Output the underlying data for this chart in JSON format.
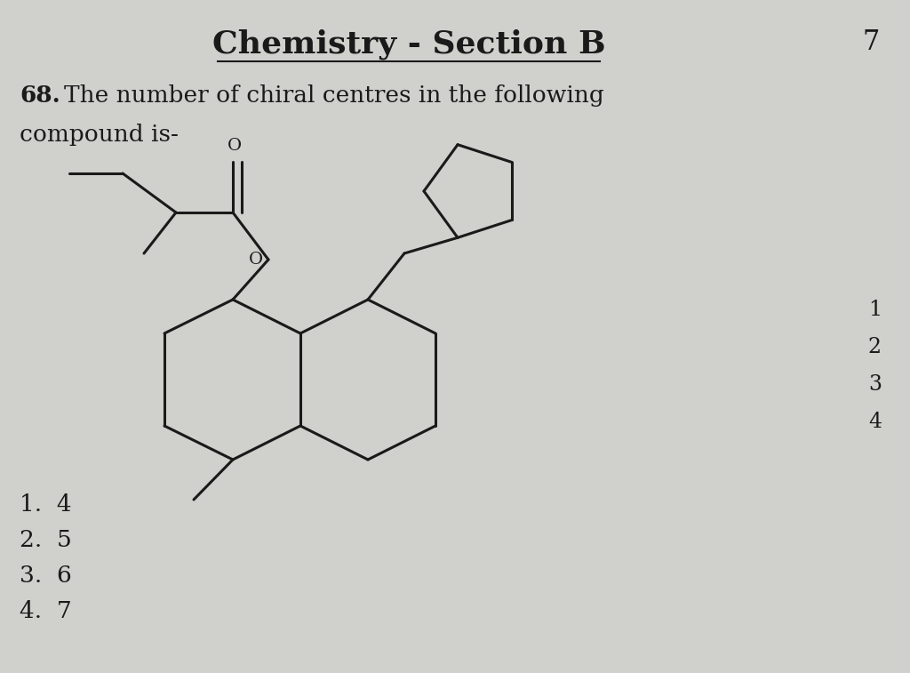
{
  "title": "Chemistry - Section B",
  "question_num": "68.",
  "question_text_1": "The number of chiral centres in the following",
  "question_text_2": "compound is-",
  "options": [
    "1.  4",
    "2.  5",
    "3.  6",
    "4.  7"
  ],
  "bg_color": "#d0d0cc",
  "text_color": "#1a1a1a",
  "right_number": "7",
  "right_side_nums": [
    "1",
    "2",
    "3",
    "4"
  ],
  "line_width": 2.2,
  "O_label_ester": "O",
  "O_label_carbonyl": "O"
}
